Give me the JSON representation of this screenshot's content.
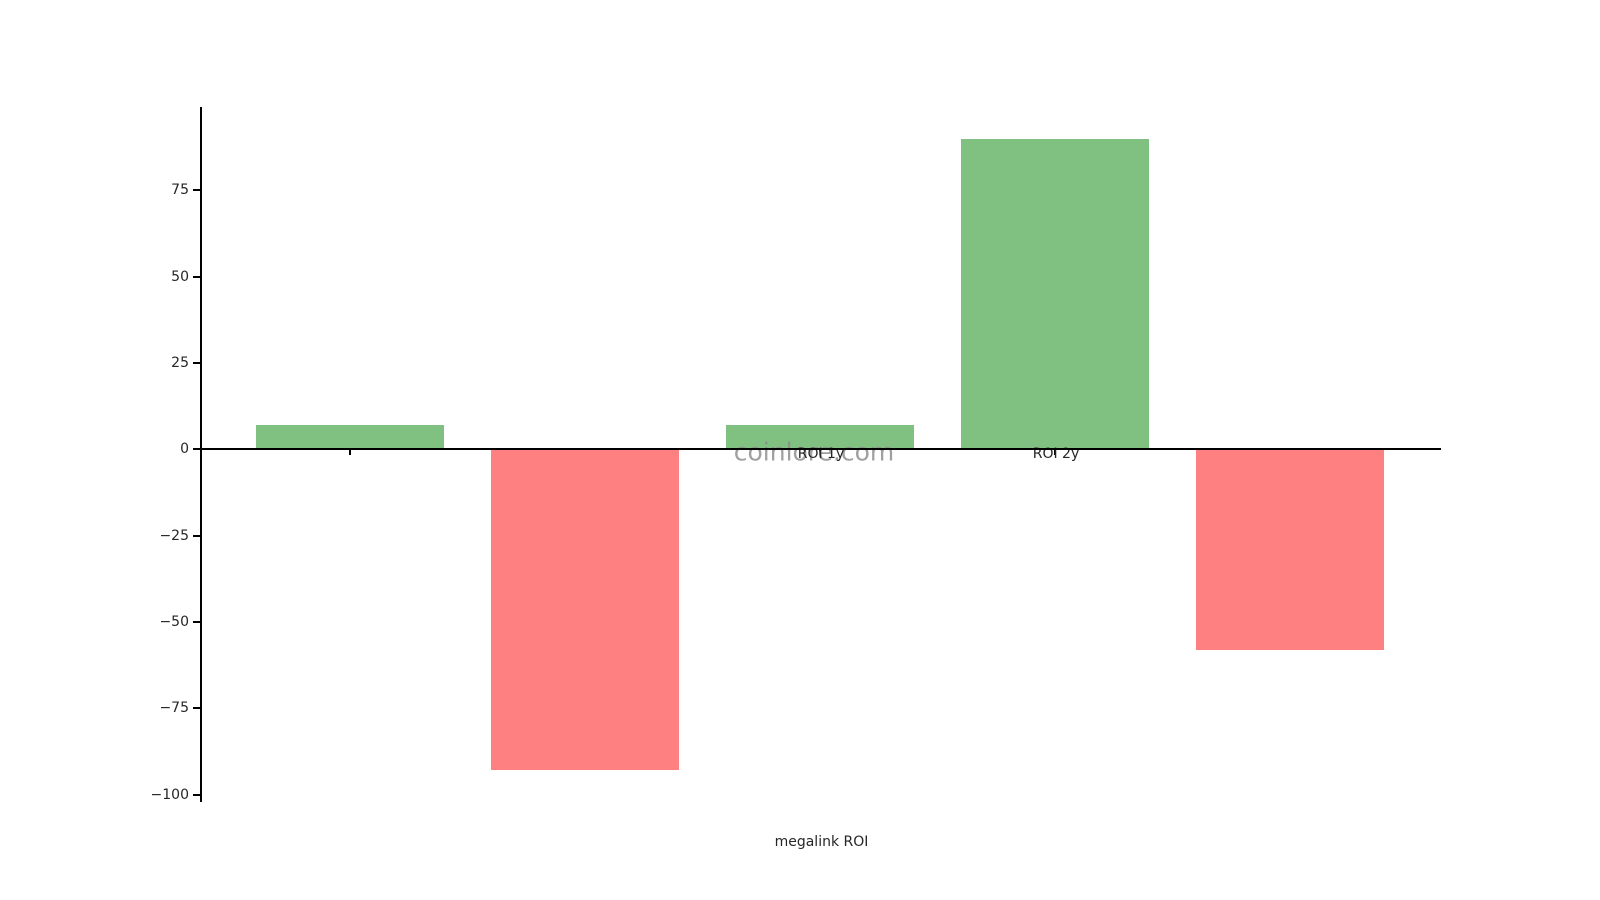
{
  "chart_data": {
    "type": "bar",
    "categories": [
      "",
      "",
      "ROI 1y",
      "ROI 2y",
      ""
    ],
    "values": [
      7,
      -93,
      7,
      90,
      -58
    ],
    "colors": [
      "#80c080",
      "#ff8080",
      "#80c080",
      "#80c080",
      "#ff8080"
    ],
    "positive_color": "#80c080",
    "negative_color": "#ff8080",
    "title": "",
    "xlabel": "megalink ROI",
    "ylabel": "",
    "ylim": [
      -102.15,
      99.15
    ],
    "yticks": [
      75,
      50,
      25,
      0,
      -25,
      -50,
      -75,
      -100
    ],
    "ytick_labels": [
      "75",
      "50",
      "25",
      "0",
      "−25",
      "−50",
      "−75",
      "−100"
    ],
    "grid": false,
    "legend": "none"
  },
  "watermark": {
    "text": "coinlore.com",
    "color": "#8c8c8c"
  }
}
